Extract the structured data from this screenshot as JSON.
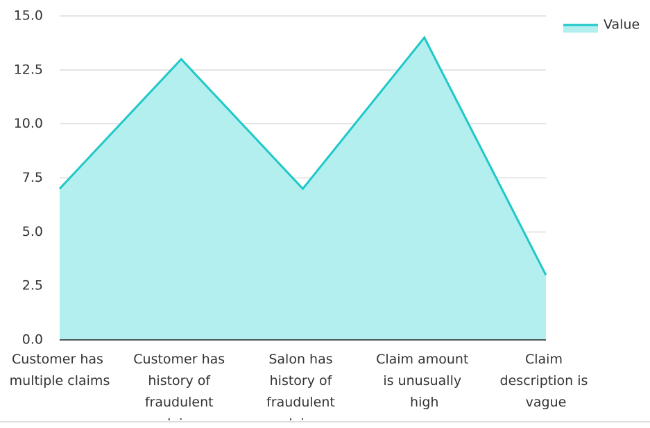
{
  "chart_data": {
    "type": "area",
    "categories": [
      "Customer has multiple claims",
      "Customer has history of fraudulent claims",
      "Salon has history of fraudulent claims",
      "Claim amount is unusually high",
      "Claim description is vague"
    ],
    "series": [
      {
        "name": "Value",
        "color": "#1fc8c8",
        "fill": "#b2efee",
        "values": [
          7,
          13,
          7,
          14,
          3
        ]
      }
    ],
    "ylim": [
      0,
      15
    ],
    "yticks": [
      {
        "value": 0,
        "label": "0.0"
      },
      {
        "value": 2.5,
        "label": "2.5"
      },
      {
        "value": 5,
        "label": "5.0"
      },
      {
        "value": 7.5,
        "label": "7.5"
      },
      {
        "value": 10,
        "label": "10.0"
      },
      {
        "value": 12.5,
        "label": "12.5"
      },
      {
        "value": 15,
        "label": "15.0"
      }
    ],
    "grid": true,
    "legend": "top-right"
  }
}
